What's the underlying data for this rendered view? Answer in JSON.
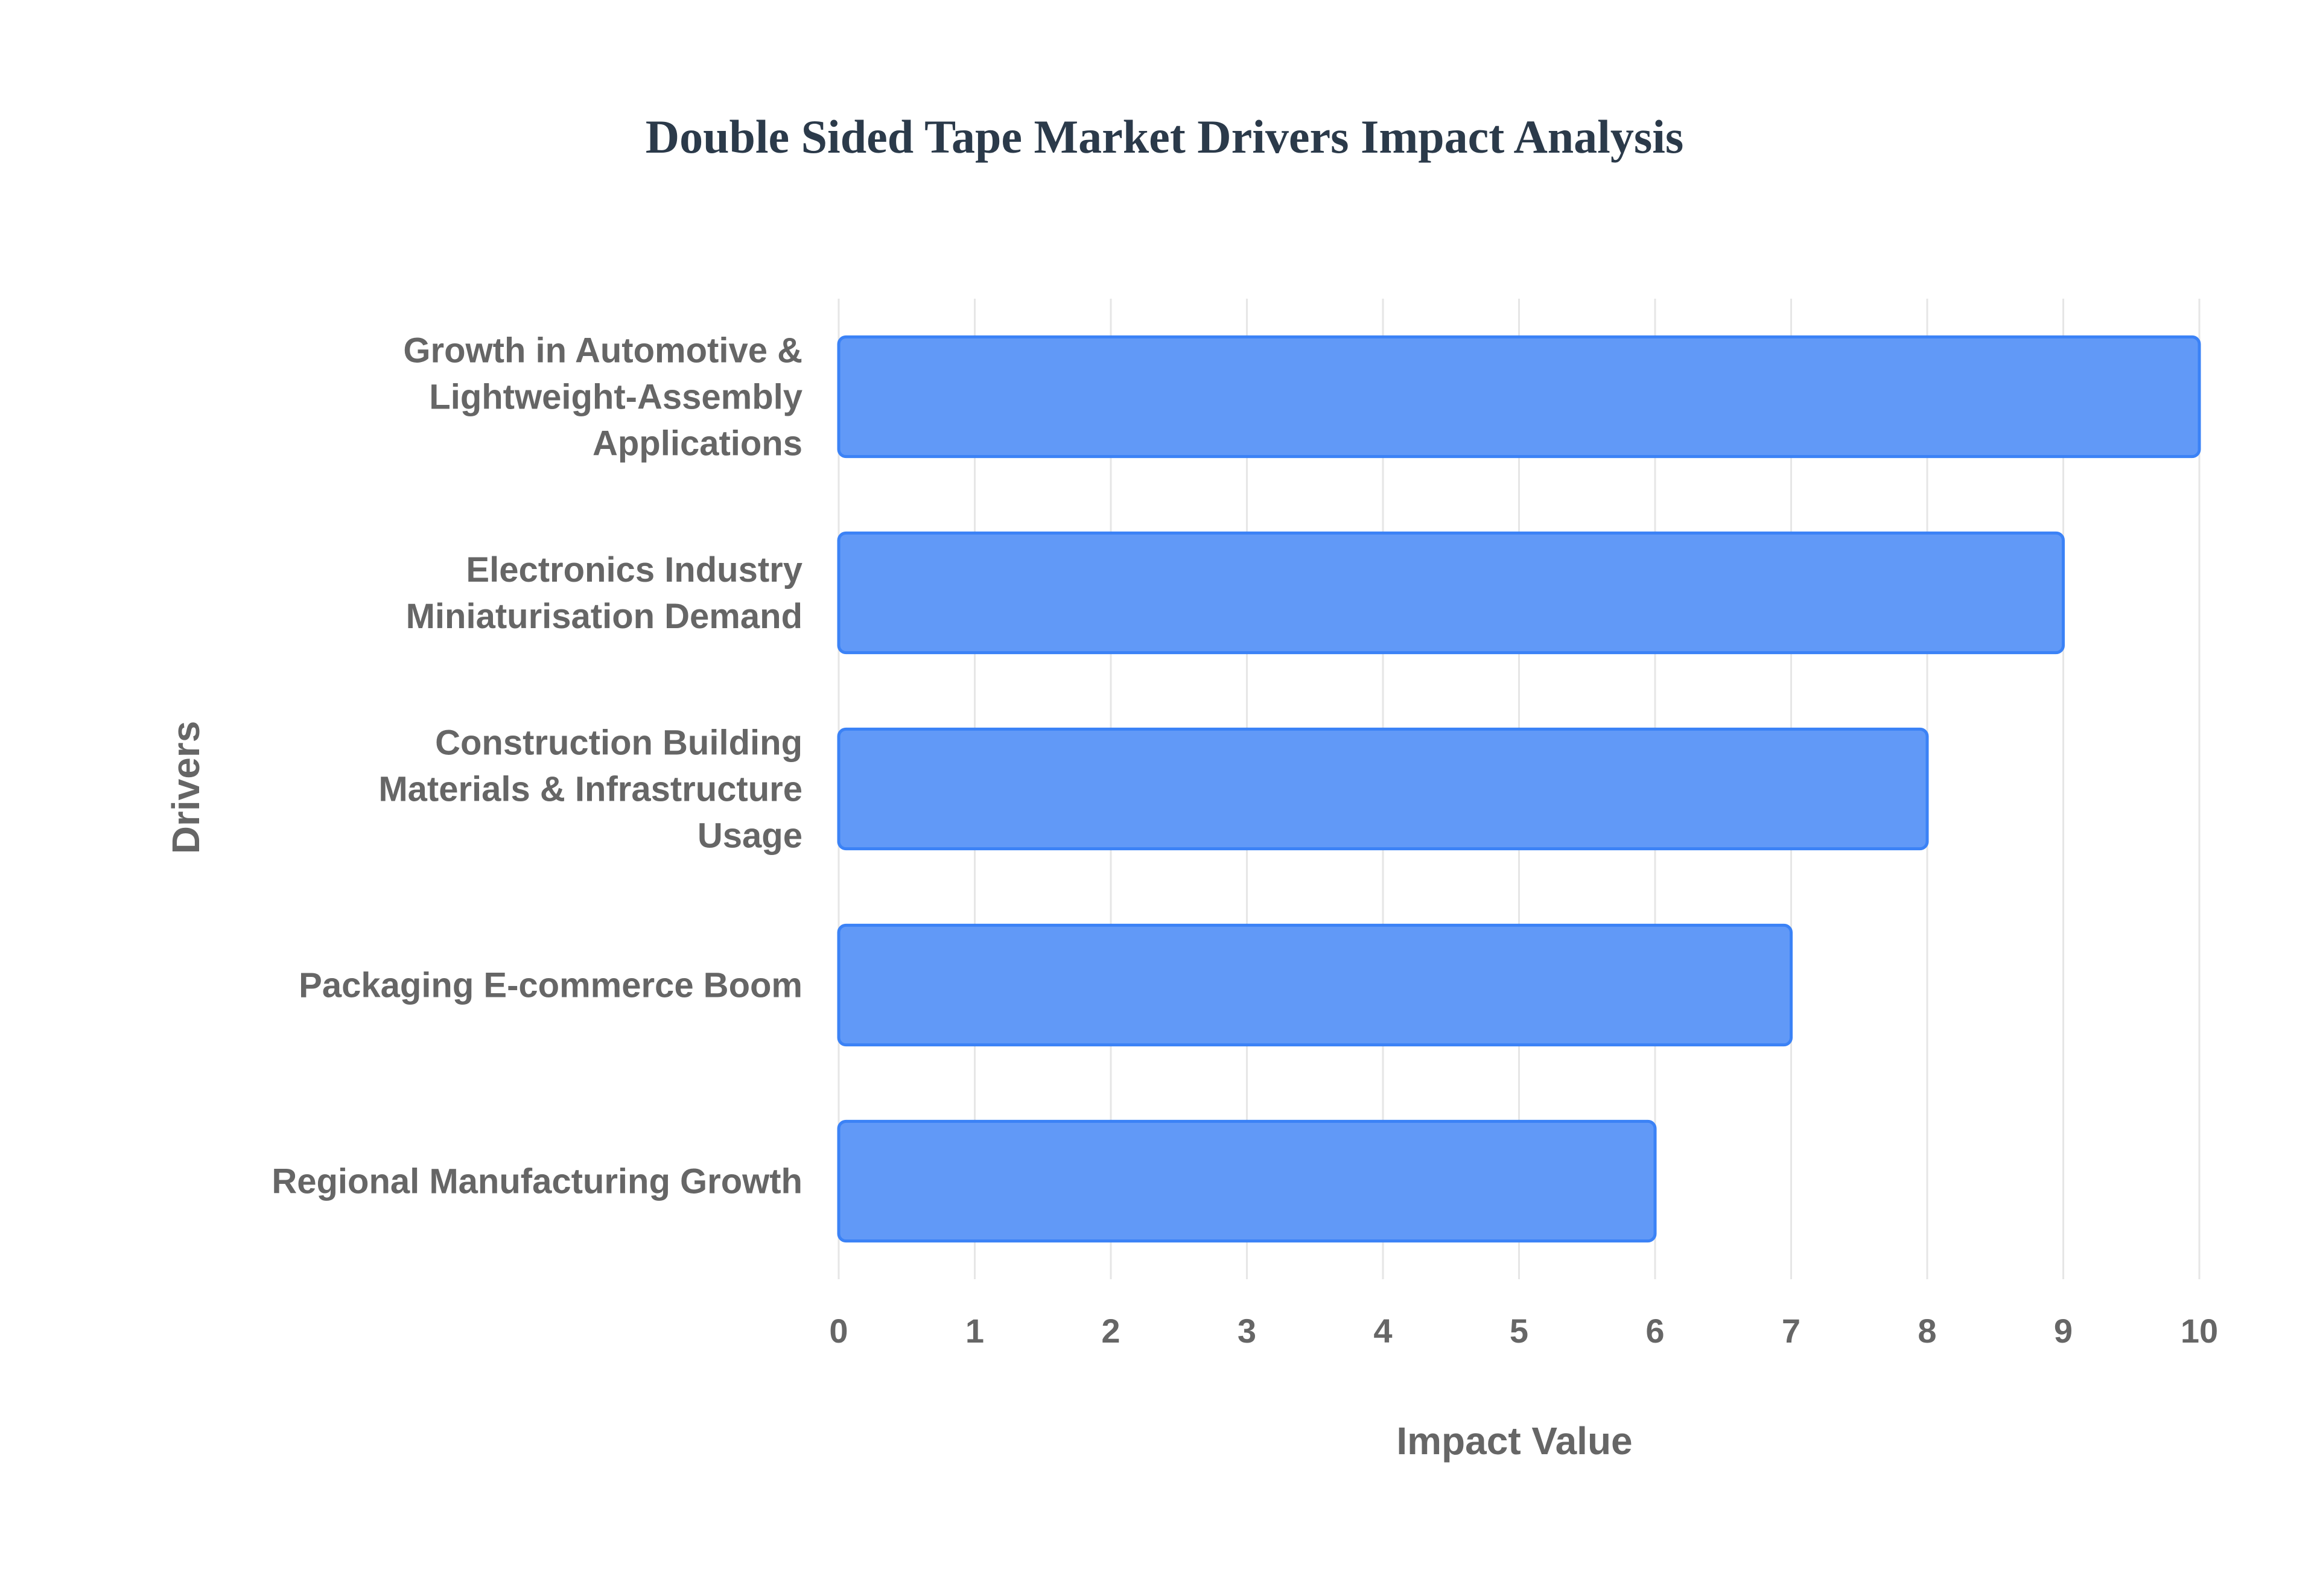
{
  "chart_data": {
    "type": "bar",
    "orientation": "horizontal",
    "title": "Double Sided Tape Market Drivers Impact Analysis",
    "xlabel": "Impact Value",
    "ylabel": "Drivers",
    "xlim": [
      0,
      10
    ],
    "x_ticks": [
      "0",
      "1",
      "2",
      "3",
      "4",
      "5",
      "6",
      "7",
      "8",
      "9",
      "10"
    ],
    "grid": true,
    "legend": "none",
    "bar_color": "#3b82f6",
    "bar_fill": "#6199f7",
    "categories": [
      [
        "Growth in Automotive &",
        "Lightweight-Assembly",
        "Applications"
      ],
      [
        "Electronics Industry",
        "Miniaturisation Demand"
      ],
      [
        "Construction Building",
        "Materials & Infrastructure",
        "Usage"
      ],
      [
        "Packaging E-commerce Boom"
      ],
      [
        "Regional Manufacturing Growth"
      ]
    ],
    "values": [
      10,
      9,
      8,
      7,
      6
    ]
  }
}
